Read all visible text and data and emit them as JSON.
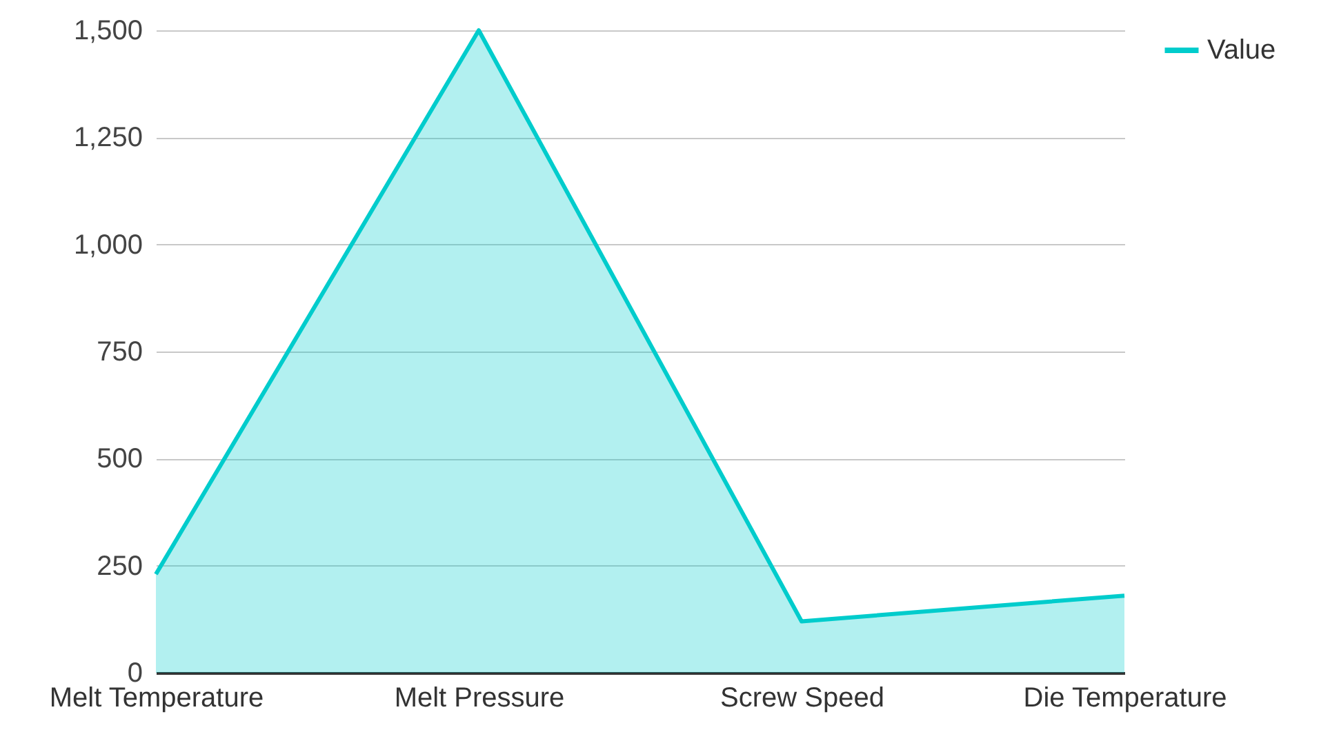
{
  "chart_data": {
    "type": "area",
    "categories": [
      "Melt Temperature",
      "Melt Pressure",
      "Screw Speed",
      "Die Temperature"
    ],
    "series": [
      {
        "name": "Value",
        "color": "#00cccc",
        "values": [
          230,
          1500,
          120,
          180
        ]
      }
    ],
    "ylim": [
      0,
      1500
    ],
    "yticks": [
      0,
      {
        "value": 250,
        "label": "250"
      },
      {
        "value": 500,
        "label": "500"
      },
      {
        "value": 750,
        "label": "750"
      },
      {
        "value": 1000,
        "label": "1,000"
      },
      {
        "value": 1250,
        "label": "1,250"
      },
      {
        "value": 1500,
        "label": "1,500"
      }
    ],
    "grid": "y",
    "legend": "top right"
  }
}
